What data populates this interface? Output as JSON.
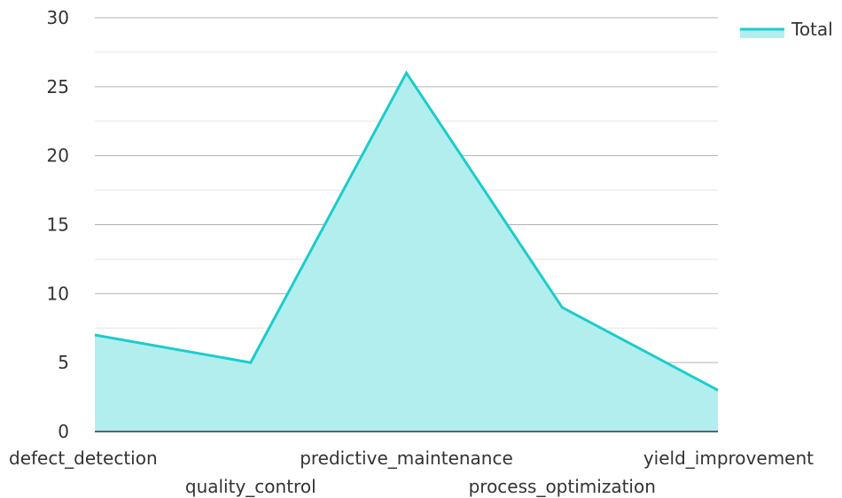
{
  "chart_data": {
    "type": "area",
    "categories": [
      "defect_detection",
      "quality_control",
      "predictive_maintenance",
      "process_optimization",
      "yield_improvement"
    ],
    "series": [
      {
        "name": "Total",
        "values": [
          7,
          5,
          26,
          9,
          3
        ]
      }
    ],
    "title": "",
    "xlabel": "",
    "ylabel": "",
    "ylim": [
      0,
      30
    ],
    "yticks": [
      0,
      5,
      10,
      15,
      20,
      25,
      30
    ],
    "grid": true,
    "legend": "top-right",
    "colors": {
      "line": "#1ccccc",
      "fill": "#b3eeee",
      "grid_major": "#b3b3b3",
      "grid_minor": "#e6e6e6",
      "axis": "#333333"
    }
  }
}
